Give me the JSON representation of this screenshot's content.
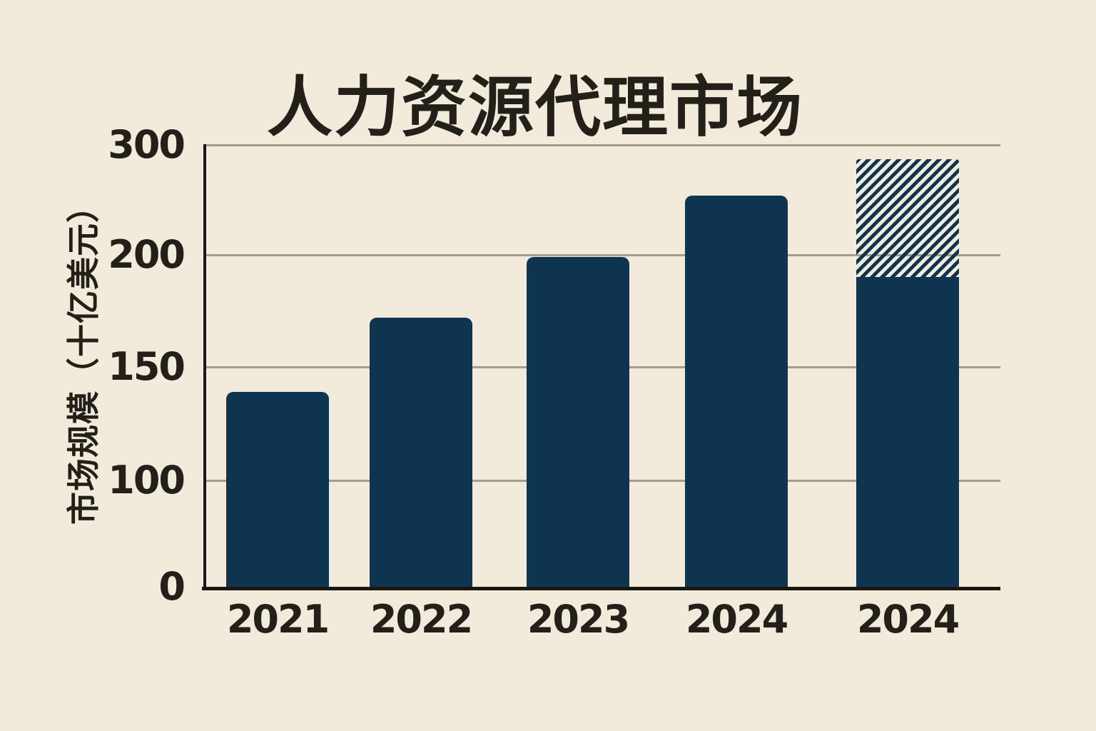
{
  "page": {
    "background_color": "#f2ebdc"
  },
  "chart_data": {
    "type": "bar",
    "title": "人力资源代理市场",
    "ylabel": "市场规模（十亿美元）",
    "xlabel": "",
    "categories": [
      "2021",
      "2022",
      "2023",
      "2024",
      "2024"
    ],
    "values": [
      139,
      172,
      199,
      254,
      190
    ],
    "hatched_overlay": {
      "category_index": 4,
      "from_value": 190,
      "to_value": 287,
      "pattern": "diagonal-stripes-up-right"
    },
    "y_ticks": [
      300,
      200,
      150,
      100,
      0
    ],
    "ylim": [
      0,
      300
    ],
    "y_axis_note": "tick gridlines evenly spaced although tick values step 0/100/150/200/300",
    "grid": true,
    "legend_position": "none",
    "colors": {
      "bar": "#0f3450",
      "background": "#f2ebdc",
      "gridline": "#a59e90",
      "axis": "#1a1712",
      "text": "#23201a"
    }
  }
}
